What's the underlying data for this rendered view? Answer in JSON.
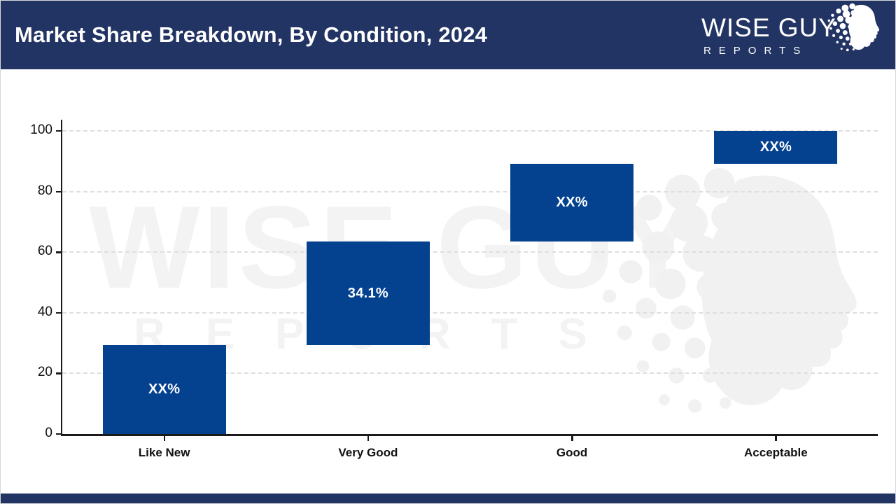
{
  "header": {
    "title": "Market Share Breakdown, By Condition, 2024",
    "bg_color": "#223463",
    "logo": {
      "line1": "WISE GUY",
      "line2": "REPORTS"
    }
  },
  "watermark": {
    "line1": "WISE GUY",
    "line2": "REPORTS"
  },
  "footer": {
    "bg_color": "#223463"
  },
  "chart_data": {
    "type": "bar",
    "subtype": "floating-waterfall",
    "title": "Market Share Breakdown, By Condition, 2024",
    "categories": [
      "Like New",
      "Very Good",
      "Good",
      "Acceptable"
    ],
    "segments": [
      {
        "category": "Like New",
        "start": 0,
        "end": 29.3,
        "label": "XX%"
      },
      {
        "category": "Very Good",
        "start": 29.3,
        "end": 63.4,
        "label": "34.1%"
      },
      {
        "category": "Good",
        "start": 63.4,
        "end": 89.2,
        "label": "XX%"
      },
      {
        "category": "Acceptable",
        "start": 89.2,
        "end": 100,
        "label": "XX%"
      }
    ],
    "y_ticks": [
      0,
      20,
      40,
      60,
      80,
      100
    ],
    "ylim": [
      0,
      104
    ],
    "xlabel": "",
    "ylabel": "",
    "grid": true,
    "gridline_color": "#dedede",
    "bar_color": "#04418f",
    "bar_label_color": "#ffffff",
    "legend": null
  }
}
